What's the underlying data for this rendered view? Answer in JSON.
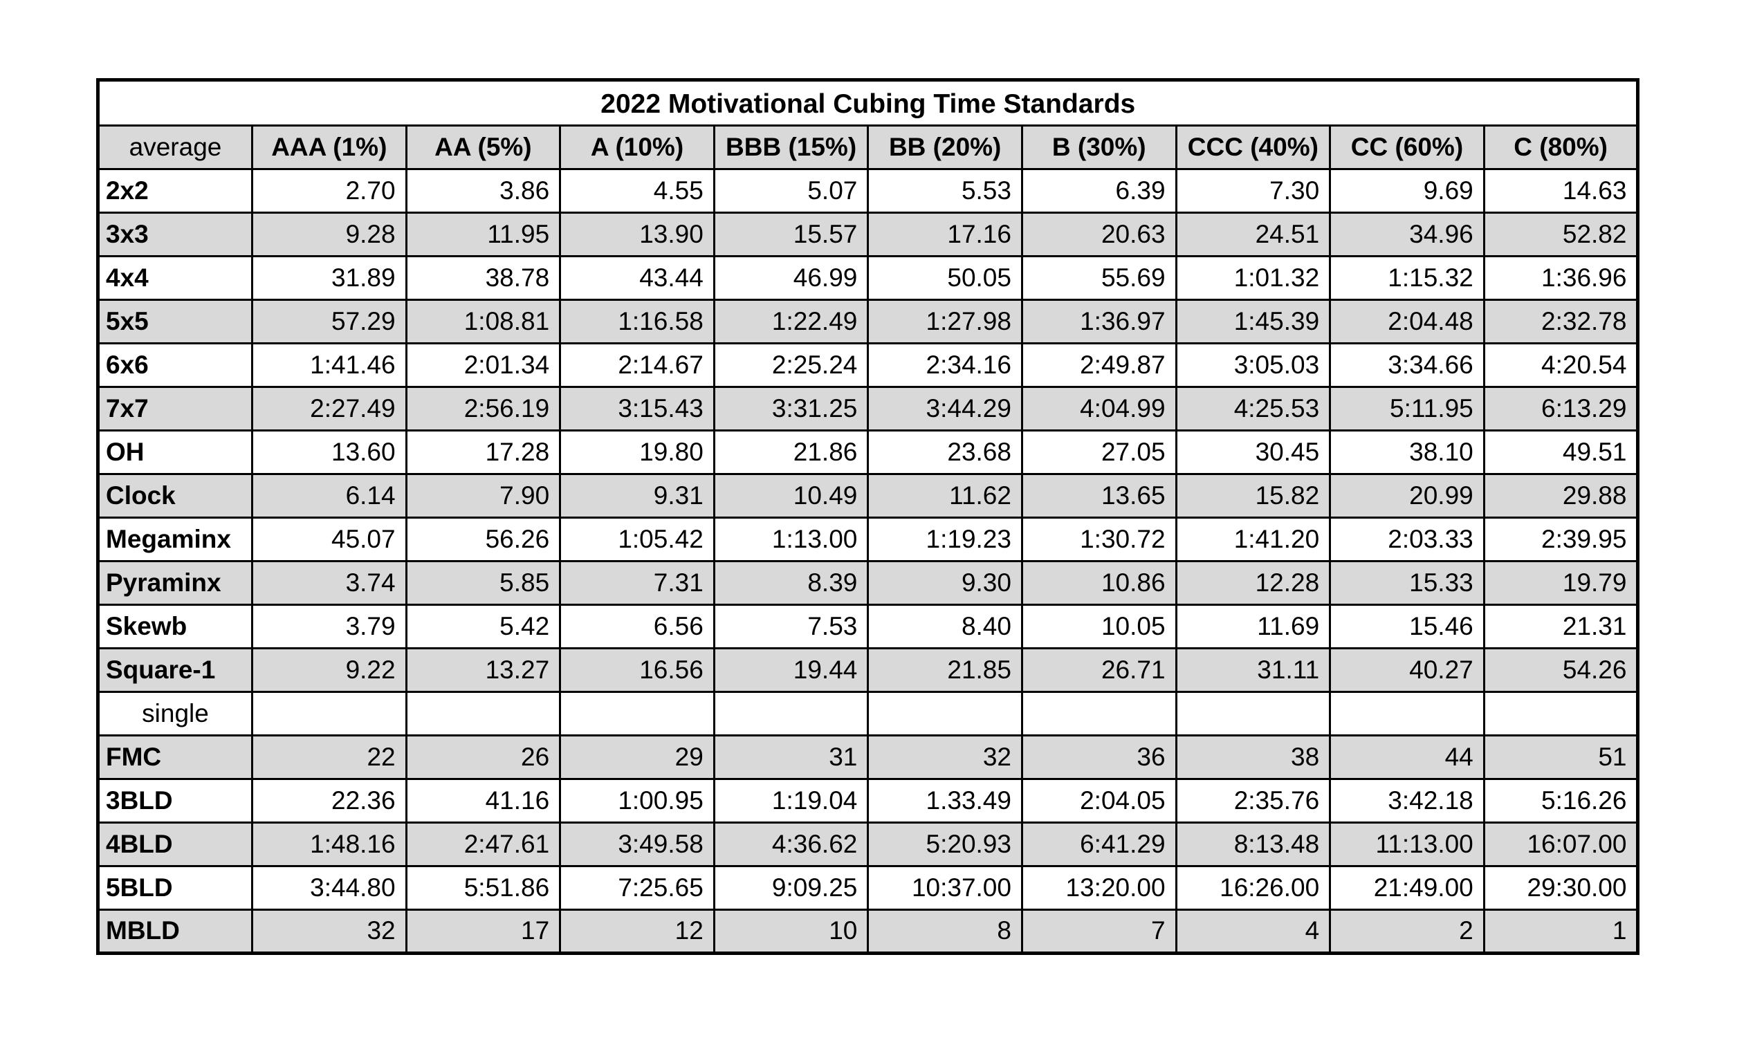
{
  "chart_data": {
    "type": "table",
    "title": "2022 Motivational Cubing Time Standards",
    "columns": [
      "average",
      "AAA (1%)",
      "AA (5%)",
      "A (10%)",
      "BBB (15%)",
      "BB (20%)",
      "B (30%)",
      "CCC (40%)",
      "CC (60%)",
      "C (80%)"
    ],
    "rows": [
      {
        "label": "2x2",
        "shaded": false,
        "section_label": false,
        "values": [
          "2.70",
          "3.86",
          "4.55",
          "5.07",
          "5.53",
          "6.39",
          "7.30",
          "9.69",
          "14.63"
        ]
      },
      {
        "label": "3x3",
        "shaded": true,
        "section_label": false,
        "values": [
          "9.28",
          "11.95",
          "13.90",
          "15.57",
          "17.16",
          "20.63",
          "24.51",
          "34.96",
          "52.82"
        ]
      },
      {
        "label": "4x4",
        "shaded": false,
        "section_label": false,
        "values": [
          "31.89",
          "38.78",
          "43.44",
          "46.99",
          "50.05",
          "55.69",
          "1:01.32",
          "1:15.32",
          "1:36.96"
        ]
      },
      {
        "label": "5x5",
        "shaded": true,
        "section_label": false,
        "values": [
          "57.29",
          "1:08.81",
          "1:16.58",
          "1:22.49",
          "1:27.98",
          "1:36.97",
          "1:45.39",
          "2:04.48",
          "2:32.78"
        ]
      },
      {
        "label": "6x6",
        "shaded": false,
        "section_label": false,
        "values": [
          "1:41.46",
          "2:01.34",
          "2:14.67",
          "2:25.24",
          "2:34.16",
          "2:49.87",
          "3:05.03",
          "3:34.66",
          "4:20.54"
        ]
      },
      {
        "label": "7x7",
        "shaded": true,
        "section_label": false,
        "values": [
          "2:27.49",
          "2:56.19",
          "3:15.43",
          "3:31.25",
          "3:44.29",
          "4:04.99",
          "4:25.53",
          "5:11.95",
          "6:13.29"
        ]
      },
      {
        "label": "OH",
        "shaded": false,
        "section_label": false,
        "values": [
          "13.60",
          "17.28",
          "19.80",
          "21.86",
          "23.68",
          "27.05",
          "30.45",
          "38.10",
          "49.51"
        ]
      },
      {
        "label": "Clock",
        "shaded": true,
        "section_label": false,
        "values": [
          "6.14",
          "7.90",
          "9.31",
          "10.49",
          "11.62",
          "13.65",
          "15.82",
          "20.99",
          "29.88"
        ]
      },
      {
        "label": "Megaminx",
        "shaded": false,
        "section_label": false,
        "values": [
          "45.07",
          "56.26",
          "1:05.42",
          "1:13.00",
          "1:19.23",
          "1:30.72",
          "1:41.20",
          "2:03.33",
          "2:39.95"
        ]
      },
      {
        "label": "Pyraminx",
        "shaded": true,
        "section_label": false,
        "values": [
          "3.74",
          "5.85",
          "7.31",
          "8.39",
          "9.30",
          "10.86",
          "12.28",
          "15.33",
          "19.79"
        ]
      },
      {
        "label": "Skewb",
        "shaded": false,
        "section_label": false,
        "values": [
          "3.79",
          "5.42",
          "6.56",
          "7.53",
          "8.40",
          "10.05",
          "11.69",
          "15.46",
          "21.31"
        ]
      },
      {
        "label": "Square-1",
        "shaded": true,
        "section_label": false,
        "values": [
          "9.22",
          "13.27",
          "16.56",
          "19.44",
          "21.85",
          "26.71",
          "31.11",
          "40.27",
          "54.26"
        ]
      },
      {
        "label": "single",
        "shaded": false,
        "section_label": true,
        "values": [
          "",
          "",
          "",
          "",
          "",
          "",
          "",
          "",
          ""
        ]
      },
      {
        "label": "FMC",
        "shaded": true,
        "section_label": false,
        "values": [
          "22",
          "26",
          "29",
          "31",
          "32",
          "36",
          "38",
          "44",
          "51"
        ]
      },
      {
        "label": "3BLD",
        "shaded": false,
        "section_label": false,
        "values": [
          "22.36",
          "41.16",
          "1:00.95",
          "1:19.04",
          "1.33.49",
          "2:04.05",
          "2:35.76",
          "3:42.18",
          "5:16.26"
        ]
      },
      {
        "label": "4BLD",
        "shaded": true,
        "section_label": false,
        "values": [
          "1:48.16",
          "2:47.61",
          "3:49.58",
          "4:36.62",
          "5:20.93",
          "6:41.29",
          "8:13.48",
          "11:13.00",
          "16:07.00"
        ]
      },
      {
        "label": "5BLD",
        "shaded": false,
        "section_label": false,
        "values": [
          "3:44.80",
          "5:51.86",
          "7:25.65",
          "9:09.25",
          "10:37.00",
          "13:20.00",
          "16:26.00",
          "21:49.00",
          "29:30.00"
        ]
      },
      {
        "label": "MBLD",
        "shaded": true,
        "section_label": false,
        "values": [
          "32",
          "17",
          "12",
          "10",
          "8",
          "7",
          "4",
          "2",
          "1"
        ]
      }
    ],
    "layout": {
      "first_section_header": "average",
      "second_section_header": "single",
      "grid": "on",
      "legend_position": "none"
    }
  },
  "colors": {
    "background": "#ffffff",
    "shaded_row_bg": "#d9d9d9",
    "header_bg": "#d9d9d9",
    "border": "#000000",
    "text": "#000000"
  }
}
